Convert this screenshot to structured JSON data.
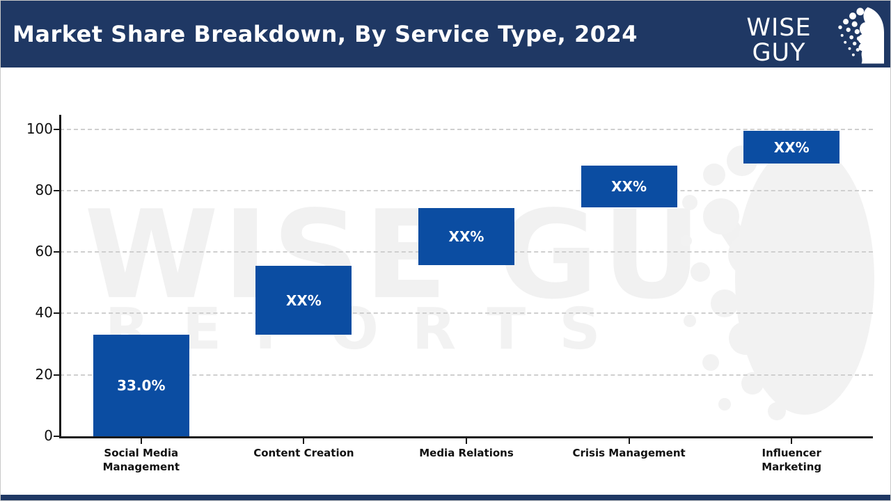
{
  "header": {
    "title": "Market Share Breakdown, By Service Type, 2024",
    "logo": {
      "line1": "WISE GUY",
      "line2": "REPORTS"
    }
  },
  "watermark": {
    "line1": "WISE GUY",
    "line2": "REPORTS"
  },
  "footer": {
    "present": true
  },
  "colors": {
    "header_bg": "#1f3864",
    "bar_fill": "#0b4da2",
    "bar_label_text": "#ffffff",
    "gridline": "#cfcfcf",
    "axis": "#1a1a1a",
    "watermark": "#f1f1f1",
    "page_border": "#c9c9c9"
  },
  "chart_data": {
    "type": "bar",
    "subtype": "waterfall-floating-bars",
    "title": "Market Share Breakdown, By Service Type, 2024",
    "xlabel": "",
    "ylabel": "",
    "categories": [
      "Social Media\nManagement",
      "Content Creation",
      "Media Relations",
      "Crisis Management",
      "Influencer\nMarketing"
    ],
    "segments": [
      {
        "category": "Social Media Management",
        "start": 0,
        "end": 33,
        "label": "33.0%"
      },
      {
        "category": "Content Creation",
        "start": 33,
        "end": 55.5,
        "label": "XX%"
      },
      {
        "category": "Media Relations",
        "start": 55.8,
        "end": 74.3,
        "label": "XX%"
      },
      {
        "category": "Crisis Management",
        "start": 74.5,
        "end": 88,
        "label": "XX%"
      },
      {
        "category": "Influencer Marketing",
        "start": 88.7,
        "end": 99.4,
        "label": "XX%"
      }
    ],
    "yticks": [
      0,
      20,
      40,
      60,
      80,
      100
    ],
    "ylim": [
      0,
      104.5
    ],
    "grid": "horizontal-dashed",
    "legend": "none",
    "value_labels_position": "inside-center"
  }
}
